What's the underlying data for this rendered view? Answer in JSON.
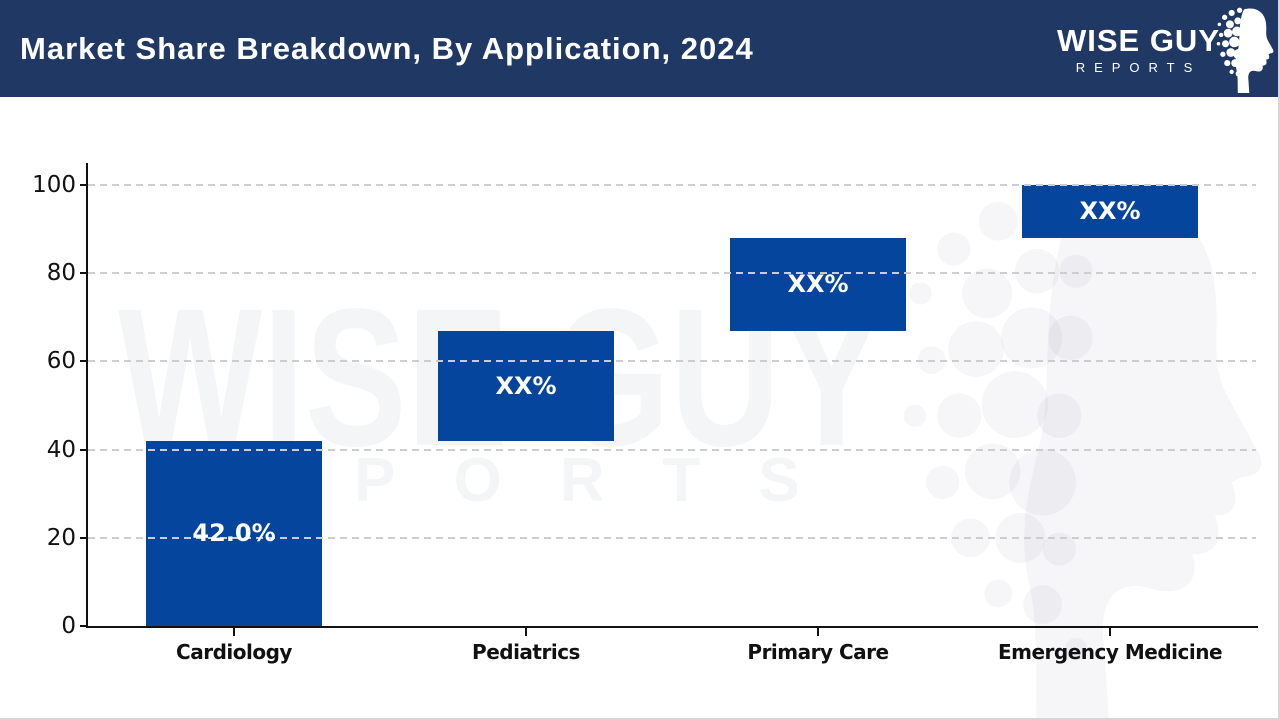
{
  "header": {
    "title": "Market Share Breakdown, By Application, 2024",
    "logo": {
      "line1": "WISE GUY",
      "line2": "REPORTS"
    }
  },
  "watermark": {
    "line1": "WISE GUY",
    "line2": "REPORTS"
  },
  "chart_data": {
    "type": "bar",
    "subtype": "waterfall",
    "title": "Market Share Breakdown, By Application, 2024",
    "categories": [
      "Cardiology",
      "Pediatrics",
      "Primary Care",
      "Emergency Medicine"
    ],
    "bars": [
      {
        "category": "Cardiology",
        "start": 0,
        "end": 42,
        "label": "42.0%"
      },
      {
        "category": "Pediatrics",
        "start": 42,
        "end": 67,
        "label": "XX%"
      },
      {
        "category": "Primary Care",
        "start": 67,
        "end": 88,
        "label": "XX%"
      },
      {
        "category": "Emergency Medicine",
        "start": 88,
        "end": 100,
        "label": "XX%"
      }
    ],
    "yticks": [
      0,
      20,
      40,
      60,
      80,
      100
    ],
    "ylim": [
      0,
      105
    ],
    "xlabel": "",
    "ylabel": "",
    "grid": "horizontal-dashed",
    "legend": "none",
    "bar_color": "#05459d",
    "bar_label_color": "#ffffff",
    "header_bg_color": "#1f3864",
    "grid_color": "#cdcdcd",
    "axis_color": "#111111"
  }
}
